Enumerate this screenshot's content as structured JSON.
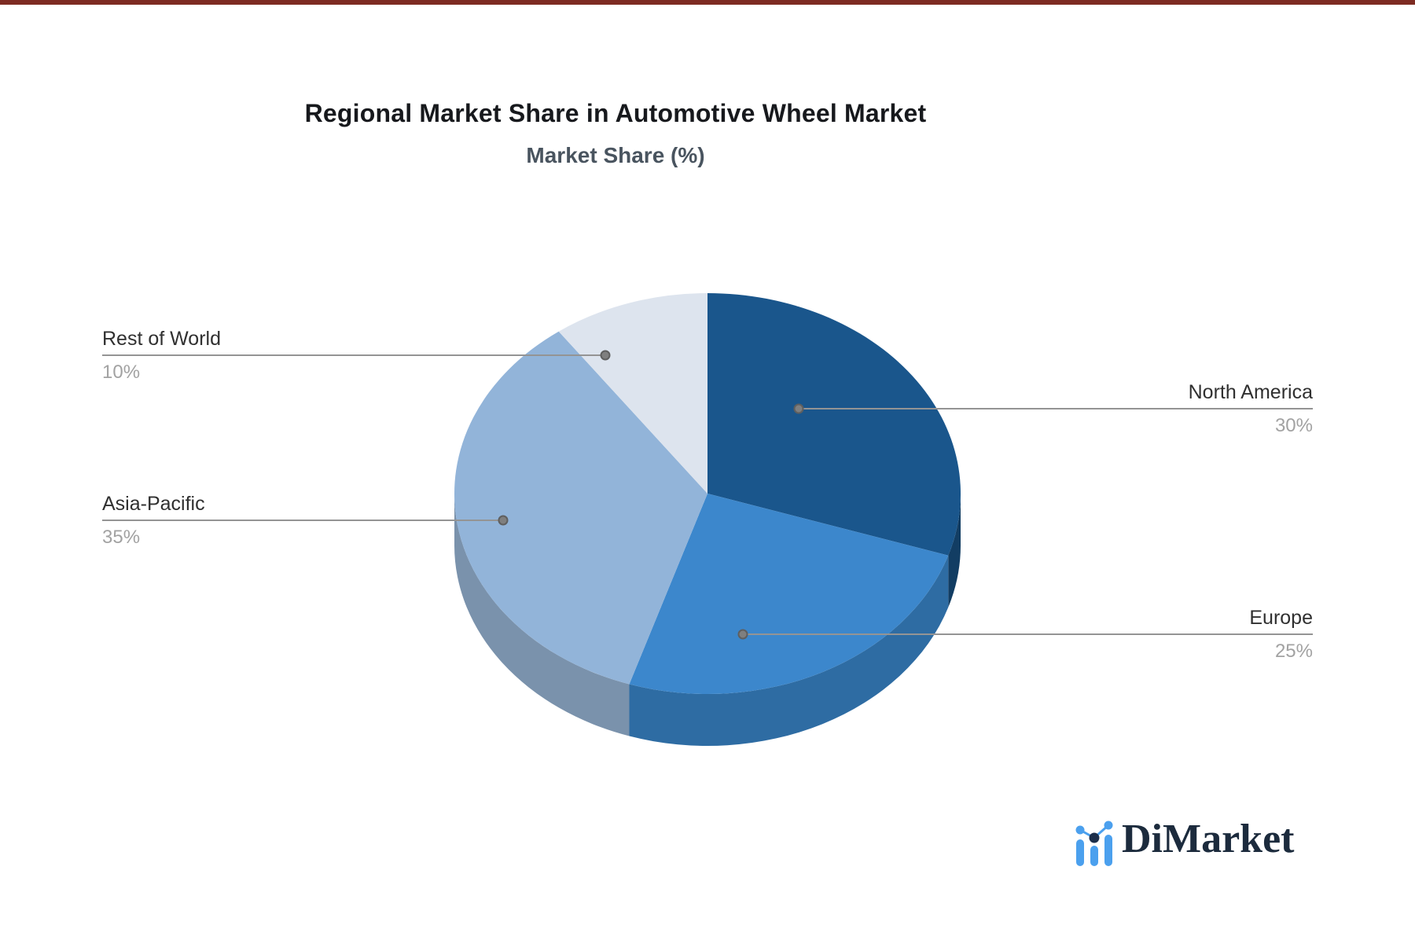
{
  "page": {
    "background_color": "#FFFFFF",
    "top_border_color": "#7D2B22"
  },
  "chart_data": {
    "type": "pie",
    "style": "3d",
    "title": "Regional Market Share in Automotive Wheel Market",
    "subtitle": "Market Share (%)",
    "title_color": "#17191D",
    "subtitle_color": "#49545F",
    "unit": "%",
    "direction": "clockwise",
    "start_angle": "12-oclock",
    "legend_position": "none",
    "labels_style": "callouts-with-leader-lines",
    "slices": [
      {
        "label": "North America",
        "value": 30,
        "display": "30%",
        "color": "#1A568C",
        "side_color": "#123D63",
        "callout_side": "right"
      },
      {
        "label": "Europe",
        "value": 25,
        "display": "25%",
        "color": "#3C87CC",
        "side_color": "#2E6CA3",
        "callout_side": "right"
      },
      {
        "label": "Asia-Pacific",
        "value": 35,
        "display": "35%",
        "color": "#92B4D9",
        "side_color": "#7A92AC",
        "callout_side": "left"
      },
      {
        "label": "Rest of World",
        "value": 10,
        "display": "10%",
        "color": "#DDE4EE",
        "side_color": "#B9C3D2",
        "callout_side": "left"
      }
    ],
    "leader_line_color": "#949494",
    "dot_color": "#7F7F7F",
    "dot_ring_color": "#5F5F5F",
    "label_color": "#303030",
    "value_color": "#A2A2A2"
  },
  "branding": {
    "logo_text": "DiMarket",
    "logo_icon": "bar-line-chart-icon",
    "logo_text_color": "#1C2B3D",
    "logo_icon_color": "#4BA0EE",
    "logo_icon_accent_color": "#1C2E4A"
  }
}
